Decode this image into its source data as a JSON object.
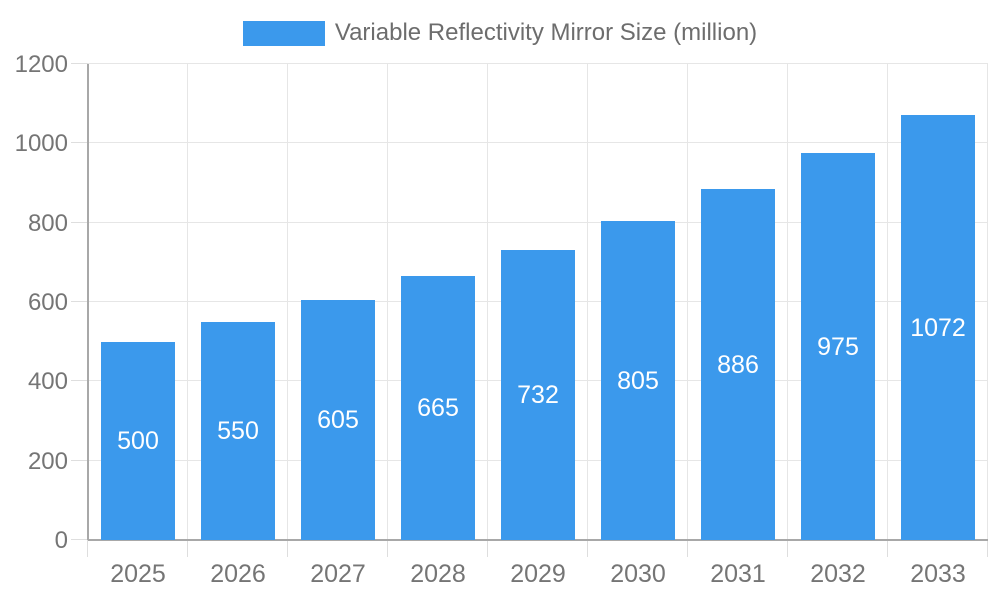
{
  "chart_data": {
    "type": "bar",
    "title": "",
    "legend": "Variable Reflectivity Mirror Size (million)",
    "legend_position": "top",
    "categories": [
      "2025",
      "2026",
      "2027",
      "2028",
      "2029",
      "2030",
      "2031",
      "2032",
      "2033"
    ],
    "series": [
      {
        "name": "Variable Reflectivity Mirror Size (million)",
        "values": [
          500,
          550,
          605,
          665,
          732,
          805,
          886,
          975,
          1072
        ]
      }
    ],
    "value_labels": [
      "500",
      "550",
      "605",
      "665",
      "732",
      "805",
      "886",
      "975",
      "1072"
    ],
    "value_label_position": "inside-center",
    "xlabel": "",
    "ylabel": "",
    "ylim": [
      0,
      1200
    ],
    "yticks": [
      0,
      200,
      400,
      600,
      800,
      1000,
      1200
    ],
    "grid": true,
    "colors": {
      "bar": "#3b99ec",
      "axis_line": "#a8a8a8",
      "grid_line": "#e6e6e6",
      "tick_line": "#dedede",
      "axis_text": "#757575",
      "legend_text": "#6d6d6d",
      "value_text": "#ffffff",
      "background": "#ffffff"
    }
  }
}
